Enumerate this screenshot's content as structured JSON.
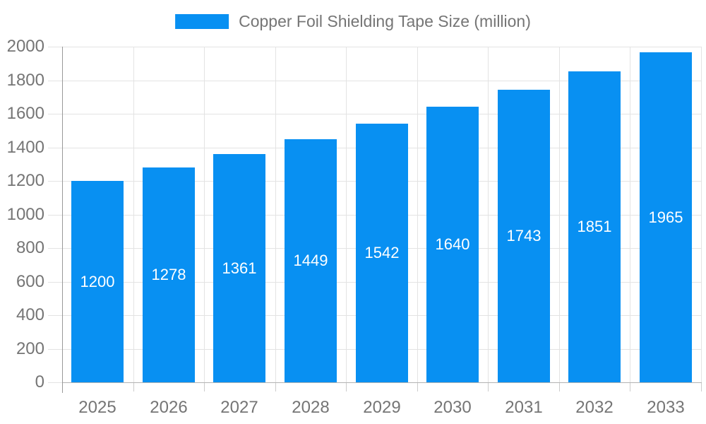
{
  "chart_data": {
    "type": "bar",
    "title": "Copper Foil Shielding Tape Size (million)",
    "categories": [
      "2025",
      "2026",
      "2027",
      "2028",
      "2029",
      "2030",
      "2031",
      "2032",
      "2033"
    ],
    "values": [
      1200,
      1278,
      1361,
      1449,
      1542,
      1640,
      1743,
      1851,
      1965
    ],
    "xlabel": "",
    "ylabel": "",
    "ylim": [
      0,
      2000
    ],
    "yticks": [
      0,
      200,
      400,
      600,
      800,
      1000,
      1200,
      1400,
      1600,
      1800,
      2000
    ],
    "grid": true,
    "legend_position": "top",
    "bar_color": "#0890F2",
    "value_label_color": "#ffffff",
    "colors": {
      "axis_line": "#999999",
      "x_axis_line": "#b3b3b3",
      "gridline": "#e3e3e3",
      "boundary_tick": "#cccccc",
      "tick_label": "#757575",
      "legend_text": "#757575"
    }
  }
}
